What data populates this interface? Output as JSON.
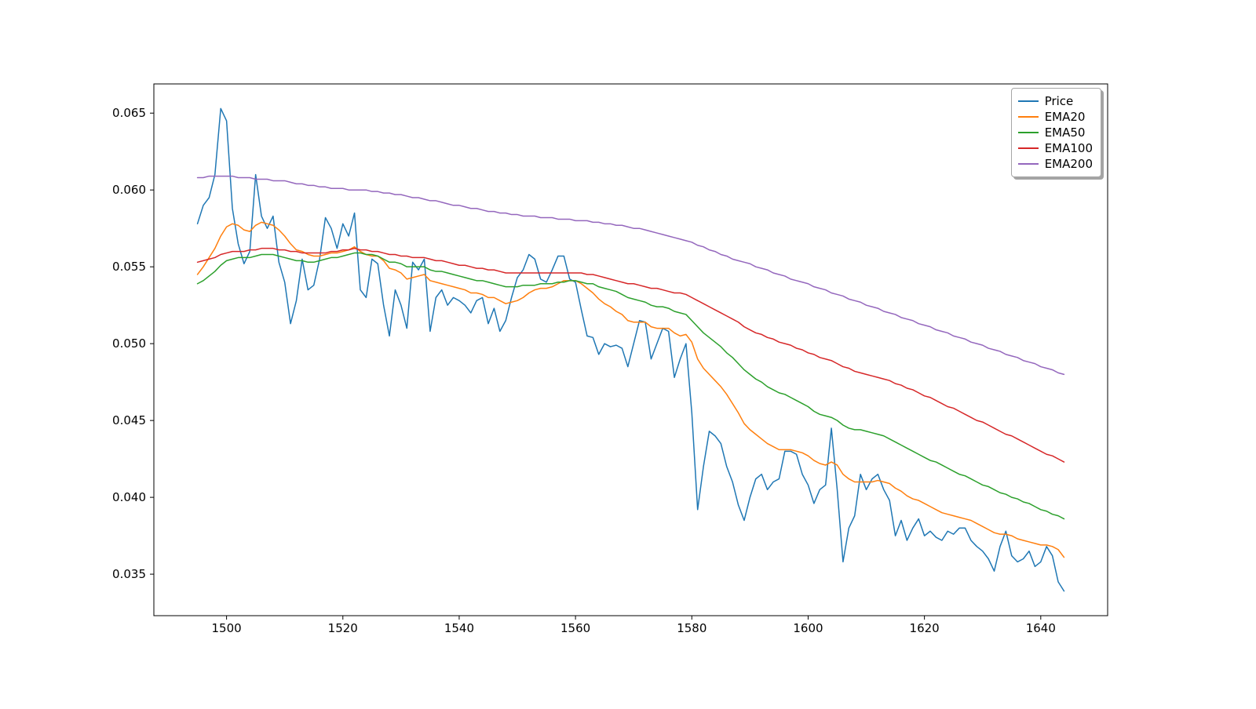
{
  "figure": {
    "background": "#ffffff",
    "axes_edge_color": "#000000",
    "text_color": "#000000"
  },
  "chart_data": {
    "type": "line",
    "title": "",
    "xlabel": "",
    "ylabel": "",
    "grid": false,
    "legend_position": "upper right",
    "xlim": [
      1487.5,
      1651.5
    ],
    "ylim": [
      0.0323,
      0.0669
    ],
    "xticks": [
      1500,
      1520,
      1540,
      1560,
      1580,
      1600,
      1620,
      1640
    ],
    "xtick_labels": [
      "1500",
      "1520",
      "1540",
      "1560",
      "1580",
      "1600",
      "1620",
      "1640"
    ],
    "yticks": [
      0.035,
      0.04,
      0.045,
      0.05,
      0.055,
      0.06,
      0.065
    ],
    "ytick_labels": [
      "0.035",
      "0.040",
      "0.045",
      "0.050",
      "0.055",
      "0.060",
      "0.065"
    ],
    "x_start": 1495,
    "x_step": 1,
    "series": [
      {
        "name": "Price",
        "color": "#1f77b4",
        "values": [
          0.0578,
          0.059,
          0.0595,
          0.061,
          0.0653,
          0.0645,
          0.0588,
          0.0565,
          0.0552,
          0.056,
          0.061,
          0.0583,
          0.0575,
          0.0583,
          0.0553,
          0.054,
          0.0513,
          0.0528,
          0.0555,
          0.0535,
          0.0538,
          0.0555,
          0.0582,
          0.0575,
          0.0562,
          0.0578,
          0.057,
          0.0585,
          0.0535,
          0.053,
          0.0555,
          0.0552,
          0.0525,
          0.0505,
          0.0535,
          0.0525,
          0.051,
          0.0553,
          0.0548,
          0.0555,
          0.0508,
          0.053,
          0.0535,
          0.0525,
          0.053,
          0.0528,
          0.0525,
          0.052,
          0.0528,
          0.053,
          0.0513,
          0.0523,
          0.0508,
          0.0515,
          0.053,
          0.0543,
          0.0548,
          0.0558,
          0.0555,
          0.0542,
          0.054,
          0.0548,
          0.0557,
          0.0557,
          0.0542,
          0.054,
          0.0522,
          0.0505,
          0.0504,
          0.0493,
          0.05,
          0.0498,
          0.0499,
          0.0497,
          0.0485,
          0.05,
          0.0515,
          0.0514,
          0.049,
          0.05,
          0.051,
          0.0508,
          0.0478,
          0.049,
          0.05,
          0.0455,
          0.0392,
          0.042,
          0.0443,
          0.044,
          0.0435,
          0.042,
          0.041,
          0.0395,
          0.0385,
          0.04,
          0.0412,
          0.0415,
          0.0405,
          0.041,
          0.0412,
          0.043,
          0.043,
          0.0428,
          0.0415,
          0.0408,
          0.0396,
          0.0405,
          0.0408,
          0.0445,
          0.0405,
          0.0358,
          0.038,
          0.0388,
          0.0415,
          0.0405,
          0.0412,
          0.0415,
          0.0405,
          0.0398,
          0.0375,
          0.0385,
          0.0372,
          0.038,
          0.0386,
          0.0375,
          0.0378,
          0.0374,
          0.0372,
          0.0378,
          0.0376,
          0.038,
          0.038,
          0.0372,
          0.0368,
          0.0365,
          0.036,
          0.0352,
          0.0368,
          0.0378,
          0.0362,
          0.0358,
          0.036,
          0.0365,
          0.0355,
          0.0358,
          0.0368,
          0.0362,
          0.0345,
          0.0339
        ]
      },
      {
        "name": "EMA20",
        "color": "#ff7f0e",
        "values": [
          0.0545,
          0.055,
          0.0556,
          0.0562,
          0.057,
          0.0576,
          0.0578,
          0.0577,
          0.0574,
          0.0573,
          0.0577,
          0.0579,
          0.0578,
          0.0577,
          0.0574,
          0.057,
          0.0565,
          0.0561,
          0.056,
          0.0558,
          0.0557,
          0.0557,
          0.0558,
          0.0559,
          0.0559,
          0.056,
          0.0561,
          0.0563,
          0.056,
          0.0558,
          0.0557,
          0.0557,
          0.0554,
          0.0549,
          0.0548,
          0.0546,
          0.0542,
          0.0543,
          0.0544,
          0.0545,
          0.0541,
          0.054,
          0.0539,
          0.0538,
          0.0537,
          0.0536,
          0.0535,
          0.0533,
          0.0533,
          0.0532,
          0.053,
          0.053,
          0.0528,
          0.0526,
          0.0527,
          0.0528,
          0.053,
          0.0533,
          0.0535,
          0.0536,
          0.0536,
          0.0537,
          0.0539,
          0.0541,
          0.0541,
          0.0541,
          0.0539,
          0.0536,
          0.0533,
          0.0529,
          0.0526,
          0.0524,
          0.0521,
          0.0519,
          0.0515,
          0.0514,
          0.0514,
          0.0514,
          0.0511,
          0.051,
          0.051,
          0.051,
          0.0507,
          0.0505,
          0.0506,
          0.0501,
          0.049,
          0.0484,
          0.048,
          0.0476,
          0.0472,
          0.0467,
          0.0461,
          0.0455,
          0.0448,
          0.0444,
          0.0441,
          0.0438,
          0.0435,
          0.0433,
          0.0431,
          0.0431,
          0.0431,
          0.043,
          0.0429,
          0.0427,
          0.0424,
          0.0422,
          0.0421,
          0.0423,
          0.0421,
          0.0415,
          0.0412,
          0.041,
          0.041,
          0.041,
          0.041,
          0.0411,
          0.041,
          0.0409,
          0.0406,
          0.0404,
          0.0401,
          0.0399,
          0.0398,
          0.0396,
          0.0394,
          0.0392,
          0.039,
          0.0389,
          0.0388,
          0.0387,
          0.0386,
          0.0385,
          0.0383,
          0.0381,
          0.0379,
          0.0377,
          0.0376,
          0.0376,
          0.0375,
          0.0373,
          0.0372,
          0.0371,
          0.037,
          0.0369,
          0.0369,
          0.0368,
          0.0366,
          0.0361
        ]
      },
      {
        "name": "EMA50",
        "color": "#2ca02c",
        "values": [
          0.0539,
          0.0541,
          0.0544,
          0.0547,
          0.0551,
          0.0554,
          0.0555,
          0.0556,
          0.0556,
          0.0556,
          0.0557,
          0.0558,
          0.0558,
          0.0558,
          0.0557,
          0.0556,
          0.0555,
          0.0554,
          0.0554,
          0.0553,
          0.0553,
          0.0554,
          0.0555,
          0.0556,
          0.0556,
          0.0557,
          0.0558,
          0.0559,
          0.0559,
          0.0558,
          0.0558,
          0.0557,
          0.0555,
          0.0553,
          0.0553,
          0.0552,
          0.055,
          0.055,
          0.055,
          0.055,
          0.0548,
          0.0547,
          0.0547,
          0.0546,
          0.0545,
          0.0544,
          0.0543,
          0.0542,
          0.0541,
          0.0541,
          0.054,
          0.0539,
          0.0538,
          0.0537,
          0.0537,
          0.0537,
          0.0538,
          0.0538,
          0.0538,
          0.0539,
          0.0539,
          0.0539,
          0.054,
          0.054,
          0.0541,
          0.0541,
          0.054,
          0.0539,
          0.0539,
          0.0537,
          0.0536,
          0.0535,
          0.0534,
          0.0532,
          0.053,
          0.0529,
          0.0528,
          0.0527,
          0.0525,
          0.0524,
          0.0524,
          0.0523,
          0.0521,
          0.052,
          0.0519,
          0.0515,
          0.0511,
          0.0507,
          0.0504,
          0.0501,
          0.0498,
          0.0494,
          0.0491,
          0.0487,
          0.0483,
          0.048,
          0.0477,
          0.0475,
          0.0472,
          0.047,
          0.0468,
          0.0467,
          0.0465,
          0.0463,
          0.0461,
          0.0459,
          0.0456,
          0.0454,
          0.0453,
          0.0452,
          0.045,
          0.0447,
          0.0445,
          0.0444,
          0.0444,
          0.0443,
          0.0442,
          0.0441,
          0.044,
          0.0438,
          0.0436,
          0.0434,
          0.0432,
          0.043,
          0.0428,
          0.0426,
          0.0424,
          0.0423,
          0.0421,
          0.0419,
          0.0417,
          0.0415,
          0.0414,
          0.0412,
          0.041,
          0.0408,
          0.0407,
          0.0405,
          0.0403,
          0.0402,
          0.04,
          0.0399,
          0.0397,
          0.0396,
          0.0394,
          0.0392,
          0.0391,
          0.0389,
          0.0388,
          0.0386
        ]
      },
      {
        "name": "EMA100",
        "color": "#d62728",
        "values": [
          0.0553,
          0.0554,
          0.0555,
          0.0556,
          0.0558,
          0.0559,
          0.056,
          0.056,
          0.056,
          0.0561,
          0.0561,
          0.0562,
          0.0562,
          0.0562,
          0.0561,
          0.0561,
          0.056,
          0.056,
          0.0559,
          0.0559,
          0.0559,
          0.0559,
          0.0559,
          0.056,
          0.056,
          0.0561,
          0.0561,
          0.0562,
          0.0561,
          0.0561,
          0.056,
          0.056,
          0.0559,
          0.0558,
          0.0558,
          0.0557,
          0.0557,
          0.0556,
          0.0556,
          0.0556,
          0.0555,
          0.0554,
          0.0554,
          0.0553,
          0.0552,
          0.0551,
          0.0551,
          0.055,
          0.0549,
          0.0549,
          0.0548,
          0.0548,
          0.0547,
          0.0546,
          0.0546,
          0.0546,
          0.0546,
          0.0546,
          0.0546,
          0.0546,
          0.0546,
          0.0546,
          0.0546,
          0.0546,
          0.0546,
          0.0546,
          0.0546,
          0.0545,
          0.0545,
          0.0544,
          0.0543,
          0.0542,
          0.0541,
          0.054,
          0.0539,
          0.0539,
          0.0538,
          0.0537,
          0.0536,
          0.0536,
          0.0535,
          0.0534,
          0.0533,
          0.0533,
          0.0532,
          0.053,
          0.0528,
          0.0526,
          0.0524,
          0.0522,
          0.052,
          0.0518,
          0.0516,
          0.0514,
          0.0511,
          0.0509,
          0.0507,
          0.0506,
          0.0504,
          0.0503,
          0.0501,
          0.05,
          0.0499,
          0.0497,
          0.0496,
          0.0494,
          0.0493,
          0.0491,
          0.049,
          0.0489,
          0.0487,
          0.0485,
          0.0484,
          0.0482,
          0.0481,
          0.048,
          0.0479,
          0.0478,
          0.0477,
          0.0476,
          0.0474,
          0.0473,
          0.0471,
          0.047,
          0.0468,
          0.0466,
          0.0465,
          0.0463,
          0.0461,
          0.0459,
          0.0458,
          0.0456,
          0.0454,
          0.0452,
          0.045,
          0.0449,
          0.0447,
          0.0445,
          0.0443,
          0.0441,
          0.044,
          0.0438,
          0.0436,
          0.0434,
          0.0432,
          0.043,
          0.0428,
          0.0427,
          0.0425,
          0.0423
        ]
      },
      {
        "name": "EMA200",
        "color": "#9467bd",
        "values": [
          0.0608,
          0.0608,
          0.0609,
          0.0609,
          0.0609,
          0.0609,
          0.0609,
          0.0608,
          0.0608,
          0.0608,
          0.0607,
          0.0607,
          0.0607,
          0.0606,
          0.0606,
          0.0606,
          0.0605,
          0.0604,
          0.0604,
          0.0603,
          0.0603,
          0.0602,
          0.0602,
          0.0601,
          0.0601,
          0.0601,
          0.06,
          0.06,
          0.06,
          0.06,
          0.0599,
          0.0599,
          0.0598,
          0.0598,
          0.0597,
          0.0597,
          0.0596,
          0.0595,
          0.0595,
          0.0594,
          0.0593,
          0.0593,
          0.0592,
          0.0591,
          0.059,
          0.059,
          0.0589,
          0.0588,
          0.0588,
          0.0587,
          0.0586,
          0.0586,
          0.0585,
          0.0585,
          0.0584,
          0.0584,
          0.0583,
          0.0583,
          0.0583,
          0.0582,
          0.0582,
          0.0582,
          0.0581,
          0.0581,
          0.0581,
          0.058,
          0.058,
          0.058,
          0.0579,
          0.0579,
          0.0578,
          0.0578,
          0.0577,
          0.0577,
          0.0576,
          0.0575,
          0.0575,
          0.0574,
          0.0573,
          0.0572,
          0.0571,
          0.057,
          0.0569,
          0.0568,
          0.0567,
          0.0566,
          0.0564,
          0.0563,
          0.0561,
          0.056,
          0.0558,
          0.0557,
          0.0555,
          0.0554,
          0.0553,
          0.0552,
          0.055,
          0.0549,
          0.0548,
          0.0546,
          0.0545,
          0.0544,
          0.0542,
          0.0541,
          0.054,
          0.0539,
          0.0537,
          0.0536,
          0.0535,
          0.0533,
          0.0532,
          0.0531,
          0.0529,
          0.0528,
          0.0527,
          0.0525,
          0.0524,
          0.0523,
          0.0521,
          0.052,
          0.0519,
          0.0517,
          0.0516,
          0.0515,
          0.0513,
          0.0512,
          0.0511,
          0.0509,
          0.0508,
          0.0507,
          0.0505,
          0.0504,
          0.0503,
          0.0501,
          0.05,
          0.0499,
          0.0497,
          0.0496,
          0.0495,
          0.0493,
          0.0492,
          0.0491,
          0.0489,
          0.0488,
          0.0487,
          0.0485,
          0.0484,
          0.0483,
          0.0481,
          0.048
        ]
      }
    ]
  },
  "legend": {
    "entries": [
      "Price",
      "EMA20",
      "EMA50",
      "EMA100",
      "EMA200"
    ]
  }
}
